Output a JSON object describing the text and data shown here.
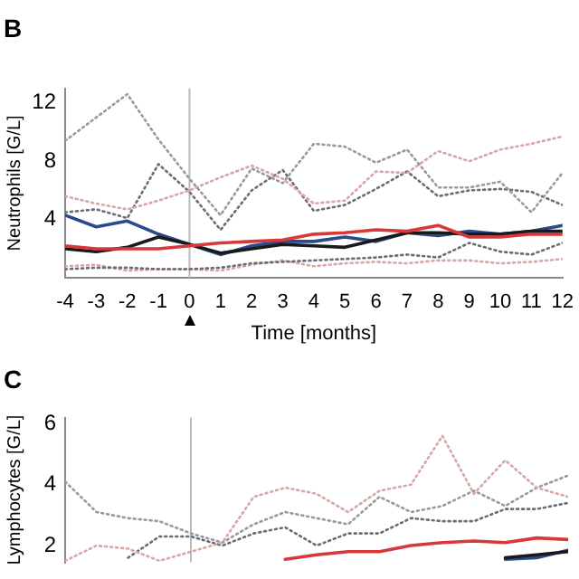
{
  "chart_data": [
    {
      "type": "line",
      "title": "B",
      "xlabel": "Time [months]",
      "ylabel": "Neutrophils [G/L]",
      "x": [
        -4,
        -3,
        -2,
        -1,
        0,
        1,
        2,
        3,
        4,
        5,
        6,
        7,
        8,
        9,
        10,
        11,
        12
      ],
      "xlim": [
        -4,
        12
      ],
      "xticks": [
        -4,
        -3,
        -2,
        -1,
        0,
        1,
        2,
        3,
        4,
        5,
        6,
        7,
        8,
        9,
        10,
        11,
        12
      ],
      "ylim": [
        0,
        13
      ],
      "yticks": [
        4,
        8,
        12
      ],
      "grid": false,
      "legend": false,
      "marker": "none",
      "ref_lines": [
        {
          "axis": "x",
          "value": 0,
          "color": "#bbbbbb"
        }
      ],
      "series": [
        {
          "color": "#999999",
          "line_style": "dotted",
          "values": [
            9.4,
            11,
            12.6,
            9.5,
            6.8,
            4.3,
            7.5,
            6.5,
            9.2,
            9.0,
            7.9,
            8.8,
            6.2,
            6.2,
            6.6,
            4.5,
            7.2
          ]
        },
        {
          "color": "#d9a5a5",
          "line_style": "dotted",
          "values": [
            5.6,
            5.1,
            4.7,
            5.3,
            6.0,
            6.9,
            7.7,
            6.8,
            5.1,
            5.3,
            7.3,
            7.2,
            8.7,
            8.0,
            8.8,
            9.2,
            9.7
          ]
        },
        {
          "color": "#6a6a78",
          "line_style": "dotted",
          "values": [
            4.5,
            4.7,
            4.1,
            7.8,
            5.9,
            3.3,
            6.0,
            7.4,
            4.6,
            5.0,
            6.1,
            7.3,
            5.6,
            6.0,
            6.1,
            5.9,
            5.0
          ]
        },
        {
          "color": "#6a6a78",
          "line_style": "dotted",
          "values": [
            0.6,
            0.7,
            0.7,
            0.6,
            0.6,
            0.7,
            1.0,
            1.1,
            1.2,
            1.3,
            1.4,
            1.6,
            1.4,
            2.4,
            1.8,
            1.6,
            2.4
          ]
        },
        {
          "color": "#d9a5a5",
          "line_style": "dotted",
          "values": [
            0.8,
            0.9,
            0.5,
            0.6,
            0.6,
            0.5,
            0.9,
            1.2,
            0.8,
            1.0,
            1.1,
            1.0,
            1.2,
            1.2,
            1.0,
            1.1,
            1.3
          ]
        },
        {
          "color": "#d9383a",
          "line_style": "solid",
          "values": [
            2.2,
            2.0,
            2.0,
            2.0,
            2.2,
            2.4,
            2.5,
            2.6,
            3.0,
            3.1,
            3.3,
            3.2,
            3.6,
            2.8,
            2.8,
            3.0,
            3.0
          ]
        },
        {
          "color": "#1a1a1a",
          "line_style": "solid",
          "values": [
            2.0,
            1.8,
            2.1,
            2.8,
            2.3,
            1.7,
            2.0,
            2.3,
            2.2,
            2.1,
            2.6,
            3.1,
            3.1,
            3.0,
            3.0,
            3.2,
            3.2
          ]
        },
        {
          "color": "#2b4a8c",
          "line_style": "solid",
          "values": [
            4.3,
            3.5,
            3.9,
            3.0,
            2.3,
            1.6,
            2.2,
            2.5,
            2.5,
            2.8,
            2.5,
            3.1,
            2.9,
            3.2,
            3.0,
            3.2,
            3.6
          ]
        }
      ]
    },
    {
      "type": "line",
      "title": "C",
      "ylabel": "Lymphocytes [G/L]",
      "x": [
        -4,
        -3,
        -2,
        -1,
        0,
        1,
        2,
        3,
        4,
        5,
        6,
        7,
        8,
        9,
        10,
        11,
        12
      ],
      "xlim": [
        -4,
        12
      ],
      "ylim": [
        1.45,
        6.2
      ],
      "yticks": [
        2,
        4,
        6
      ],
      "tick_labels": "y",
      "grid": false,
      "legend": false,
      "marker": "none",
      "ref_lines": [
        {
          "axis": "x",
          "value": 0,
          "color": "#bbbbbb"
        }
      ],
      "series": [
        {
          "color": "#d9a5a5",
          "line_style": "dotted",
          "values": [
            1.5,
            2.0,
            1.9,
            1.5,
            1.8,
            2.1,
            3.6,
            3.9,
            3.7,
            3.1,
            3.8,
            4.0,
            5.6,
            3.7,
            4.8,
            3.9,
            3.6
          ]
        },
        {
          "color": "#999999",
          "line_style": "dotted",
          "values": [
            4.1,
            3.1,
            2.9,
            2.8,
            2.4,
            2.1,
            2.7,
            3.1,
            2.9,
            2.7,
            3.6,
            3.1,
            3.3,
            3.8,
            3.3,
            3.9,
            4.3
          ]
        },
        {
          "color": "#6a6a78",
          "line_style": "dotted",
          "values": [
            null,
            null,
            1.6,
            2.3,
            2.3,
            2.0,
            2.4,
            2.6,
            2.0,
            2.4,
            2.4,
            2.9,
            2.8,
            2.8,
            3.2,
            3.2,
            3.4
          ]
        },
        {
          "color": "#d9383a",
          "line_style": "solid",
          "values": [
            null,
            null,
            null,
            null,
            null,
            null,
            null,
            1.55,
            1.7,
            1.8,
            1.8,
            2.0,
            2.1,
            2.15,
            2.1,
            2.25,
            2.2
          ]
        },
        {
          "color": "#1a1a1a",
          "line_style": "solid",
          "values": [
            null,
            null,
            null,
            null,
            null,
            null,
            null,
            null,
            null,
            null,
            null,
            null,
            null,
            null,
            1.6,
            1.7,
            1.8
          ]
        },
        {
          "color": "#2b4a8c",
          "line_style": "solid",
          "values": [
            null,
            null,
            null,
            null,
            null,
            null,
            null,
            null,
            null,
            null,
            null,
            null,
            null,
            null,
            1.55,
            1.6,
            1.85
          ]
        }
      ]
    }
  ]
}
